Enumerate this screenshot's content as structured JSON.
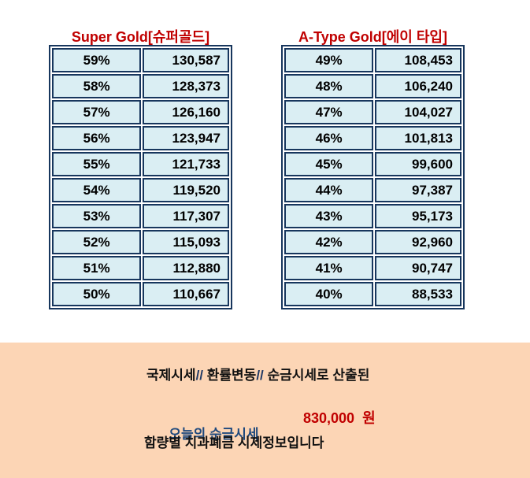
{
  "colors": {
    "title_red": "#C00000",
    "border_navy": "#17365D",
    "cell_fill": "#DAEEF3",
    "footer_bg": "#FCD5B5",
    "navy_text": "#1F497D",
    "price_red": "#C00000",
    "body_text": "#111111"
  },
  "tables": [
    {
      "title": "Super Gold[슈퍼골드]",
      "rows": [
        {
          "percent": "59%",
          "price": "130,587"
        },
        {
          "percent": "58%",
          "price": "128,373"
        },
        {
          "percent": "57%",
          "price": "126,160"
        },
        {
          "percent": "56%",
          "price": "123,947"
        },
        {
          "percent": "55%",
          "price": "121,733"
        },
        {
          "percent": "54%",
          "price": "119,520"
        },
        {
          "percent": "53%",
          "price": "117,307"
        },
        {
          "percent": "52%",
          "price": "115,093"
        },
        {
          "percent": "51%",
          "price": "112,880"
        },
        {
          "percent": "50%",
          "price": "110,667"
        }
      ]
    },
    {
      "title": "A-Type Gold[에이 타입]",
      "rows": [
        {
          "percent": "49%",
          "price": "108,453"
        },
        {
          "percent": "48%",
          "price": "106,240"
        },
        {
          "percent": "47%",
          "price": "104,027"
        },
        {
          "percent": "46%",
          "price": "101,813"
        },
        {
          "percent": "45%",
          "price": "99,600"
        },
        {
          "percent": "44%",
          "price": "97,387"
        },
        {
          "percent": "43%",
          "price": "95,173"
        },
        {
          "percent": "42%",
          "price": "92,960"
        },
        {
          "percent": "41%",
          "price": "90,747"
        },
        {
          "percent": "40%",
          "price": "88,533"
        }
      ]
    }
  ],
  "footer": {
    "line1": [
      {
        "text": "국제시세"
      },
      {
        "text": "//"
      },
      {
        "text": " 환률변동"
      },
      {
        "text": "//"
      },
      {
        "text": " 순금시세로 산출된"
      }
    ],
    "today_label": "오늘의 순금시세",
    "today_price": "830,000  원",
    "line3": "함량별 치과폐금 시제정보입니다"
  }
}
